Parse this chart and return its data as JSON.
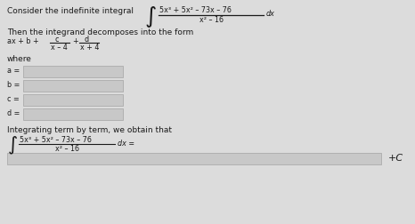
{
  "bg_color": "#dcdcdc",
  "text_color": "#1a1a1a",
  "title_text": "Consider the indefinite integral",
  "integral_num": "5x³ + 5x² – 73x – 76",
  "integral_den": "x² – 16",
  "form_text": "Then the integrand decomposes into the form",
  "form_expr": "ax + b +",
  "form_c": "c",
  "form_c_den": "x – 4",
  "form_plus": "+",
  "form_d": "d",
  "form_d_den": "x + 4",
  "where_text": "where",
  "labels": [
    "a =",
    "b =",
    "c =",
    "d ="
  ],
  "integrating_text": "Integrating term by term, we obtain that",
  "int2_num": "5x³ + 5x² – 73x – 76",
  "int2_den": "x² – 16",
  "plus_c": "+C",
  "input_box_color": "#c8c8c8",
  "input_box_outline": "#b0b0b0",
  "fs_body": 6.5,
  "fs_small": 5.8,
  "fs_integral": 13,
  "fs_plusc": 8.0
}
